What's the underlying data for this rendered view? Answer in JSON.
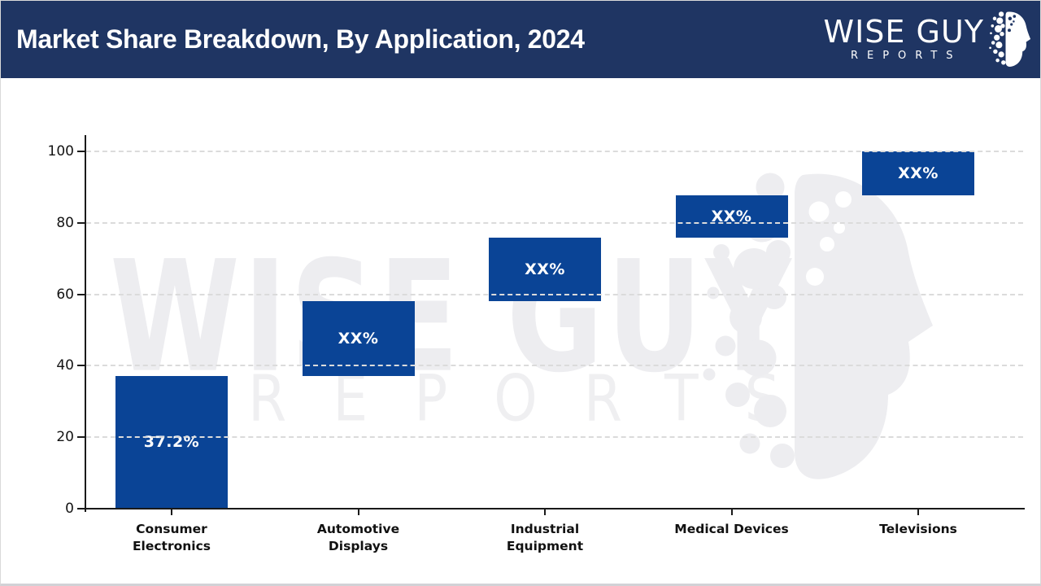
{
  "header": {
    "title": "Market Share Breakdown, By Application, 2024",
    "bg_color": "#1f3563",
    "logo": {
      "line1": "WISE GUY",
      "line2": "REPORTS"
    }
  },
  "watermark": {
    "line1": "WISE GUY",
    "line2": "REPORTS"
  },
  "chart_data": {
    "type": "bar",
    "subtype": "waterfall",
    "title": "Market Share Breakdown, By Application, 2024",
    "xlabel": "",
    "ylabel": "",
    "ylim": [
      0,
      100
    ],
    "y_ticks": [
      0,
      20,
      40,
      60,
      80,
      100
    ],
    "grid": true,
    "grid_style": "dashed",
    "legend": false,
    "bar_color": "#0a4496",
    "value_label_color": "#ffffff",
    "categories": [
      "Consumer Electronics",
      "Automotive Displays",
      "Industrial Equipment",
      "Medical Devices",
      "Televisions"
    ],
    "segments": [
      {
        "category": "Consumer Electronics",
        "label_lines": [
          "Consumer",
          "Electronics"
        ],
        "value_label": "37.2%",
        "start": 0,
        "end": 37.2
      },
      {
        "category": "Automotive Displays",
        "label_lines": [
          "Automotive",
          "Displays"
        ],
        "value_label": "XX%",
        "start": 37.2,
        "end": 58.0
      },
      {
        "category": "Industrial Equipment",
        "label_lines": [
          "Industrial",
          "Equipment"
        ],
        "value_label": "XX%",
        "start": 58.0,
        "end": 75.8
      },
      {
        "category": "Medical Devices",
        "label_lines": [
          "Medical Devices"
        ],
        "value_label": "XX%",
        "start": 75.8,
        "end": 87.7
      },
      {
        "category": "Televisions",
        "label_lines": [
          "Televisions"
        ],
        "value_label": "XX%",
        "start": 87.7,
        "end": 100
      }
    ]
  }
}
